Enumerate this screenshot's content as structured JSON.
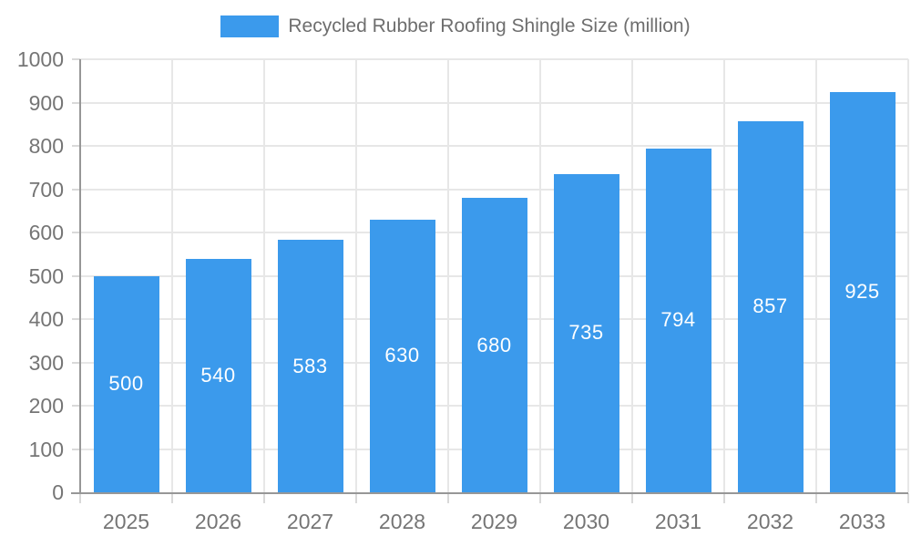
{
  "chart_data": {
    "type": "bar",
    "title": "Recycled Rubber Roofing Shingle Size (million)",
    "categories": [
      "2025",
      "2026",
      "2027",
      "2028",
      "2029",
      "2030",
      "2031",
      "2032",
      "2033"
    ],
    "values": [
      500,
      540,
      583,
      630,
      680,
      735,
      794,
      857,
      925
    ],
    "xlabel": "",
    "ylabel": "",
    "ylim": [
      0,
      1000
    ],
    "ytick_step": 100,
    "ytick_labels": [
      "0",
      "100",
      "200",
      "300",
      "400",
      "500",
      "600",
      "700",
      "800",
      "900",
      "1000"
    ],
    "grid": "horizontal and vertical light gridlines",
    "legend_position": "top-center",
    "bar_label_position": "inside-center",
    "colors": {
      "bar": "#3B9AEC",
      "bar_label": "#ffffff",
      "gridline": "#e7e7e7",
      "axis_line": "#979797",
      "tick": "#d9d9d9",
      "axis_text": "#757575",
      "legend_text": "#6e6e6e",
      "background": "#ffffff"
    }
  }
}
